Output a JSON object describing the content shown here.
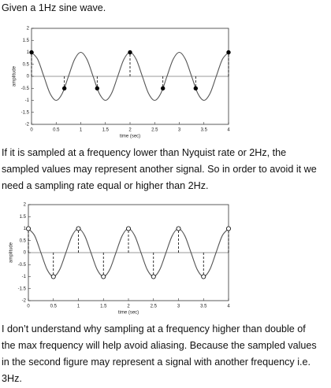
{
  "intro": "Given a 1Hz sine wave.",
  "chart_data": [
    {
      "type": "line",
      "xlabel": "time (sec)",
      "ylabel": "amplitude",
      "xlim": [
        0,
        4
      ],
      "ylim": [
        -2,
        2
      ],
      "xticks": [
        0,
        0.5,
        1,
        1.5,
        2,
        2.5,
        3,
        3.5,
        4
      ],
      "yticks": [
        -2,
        -1.5,
        -1,
        -0.5,
        0,
        0.5,
        1,
        1.5,
        2
      ],
      "series": [
        {
          "color": "#555555",
          "style": "curve",
          "x": [
            0,
            0.125,
            0.25,
            0.375,
            0.5,
            0.625,
            0.75,
            0.875,
            1,
            1.125,
            1.25,
            1.375,
            1.5,
            1.625,
            1.75,
            1.875,
            2,
            2.125,
            2.25,
            2.375,
            2.5,
            2.625,
            2.75,
            2.875,
            3,
            3.125,
            3.25,
            3.375,
            3.5,
            3.625,
            3.75,
            3.875,
            4
          ],
          "values": [
            1,
            0.707,
            0,
            -0.707,
            -1,
            -0.707,
            0,
            0.707,
            1,
            0.707,
            0,
            -0.707,
            -1,
            -0.707,
            0,
            0.707,
            1,
            0.707,
            0,
            -0.707,
            -1,
            -0.707,
            0,
            0.707,
            1,
            0.707,
            0,
            -0.707,
            -1,
            -0.707,
            0,
            0.707,
            1
          ]
        },
        {
          "color": "#000000",
          "style": "stem",
          "marker": "filled",
          "x": [
            0,
            0.667,
            1.333,
            2,
            2.667,
            3.333,
            4
          ],
          "values": [
            1,
            -0.5,
            -0.5,
            1,
            -0.5,
            -0.5,
            1
          ]
        }
      ]
    },
    {
      "type": "line",
      "xlabel": "time (sec)",
      "ylabel": "amplitude",
      "xlim": [
        0,
        4
      ],
      "ylim": [
        -2,
        2
      ],
      "xticks": [
        0,
        0.5,
        1,
        1.5,
        2,
        2.5,
        3,
        3.5,
        4
      ],
      "yticks": [
        -2,
        -1.5,
        -1,
        -0.5,
        0,
        0.5,
        1,
        1.5,
        2
      ],
      "series": [
        {
          "color": "#555555",
          "style": "curve",
          "x": [
            0,
            0.125,
            0.25,
            0.375,
            0.5,
            0.625,
            0.75,
            0.875,
            1,
            1.125,
            1.25,
            1.375,
            1.5,
            1.625,
            1.75,
            1.875,
            2,
            2.125,
            2.25,
            2.375,
            2.5,
            2.625,
            2.75,
            2.875,
            3,
            3.125,
            3.25,
            3.375,
            3.5,
            3.625,
            3.75,
            3.875,
            4
          ],
          "values": [
            1,
            0.707,
            0,
            -0.707,
            -1,
            -0.707,
            0,
            0.707,
            1,
            0.707,
            0,
            -0.707,
            -1,
            -0.707,
            0,
            0.707,
            1,
            0.707,
            0,
            -0.707,
            -1,
            -0.707,
            0,
            0.707,
            1,
            0.707,
            0,
            -0.707,
            -1,
            -0.707,
            0,
            0.707,
            1
          ]
        },
        {
          "color": "#000000",
          "style": "stem",
          "marker": "open",
          "x": [
            0,
            0.5,
            1,
            1.5,
            2,
            2.5,
            3,
            3.5,
            4
          ],
          "values": [
            1,
            -1,
            1,
            -1,
            1,
            -1,
            1,
            -1,
            1
          ]
        }
      ]
    }
  ],
  "middle_text": [
    "If it is sampled at a frequency lower than Nyquist rate or 2Hz, the",
    "sampled values may represent another signal. So in order to avoid it we",
    "need a sampling rate equal or higher than 2Hz."
  ],
  "closing_text": [
    "I don’t understand why sampling at a frequency higher than double of",
    "the max frequency will help avoid aliasing. Because  the sampled values",
    "in the second figure may represent a signal with another frequency i.e.",
    "3Hz."
  ]
}
